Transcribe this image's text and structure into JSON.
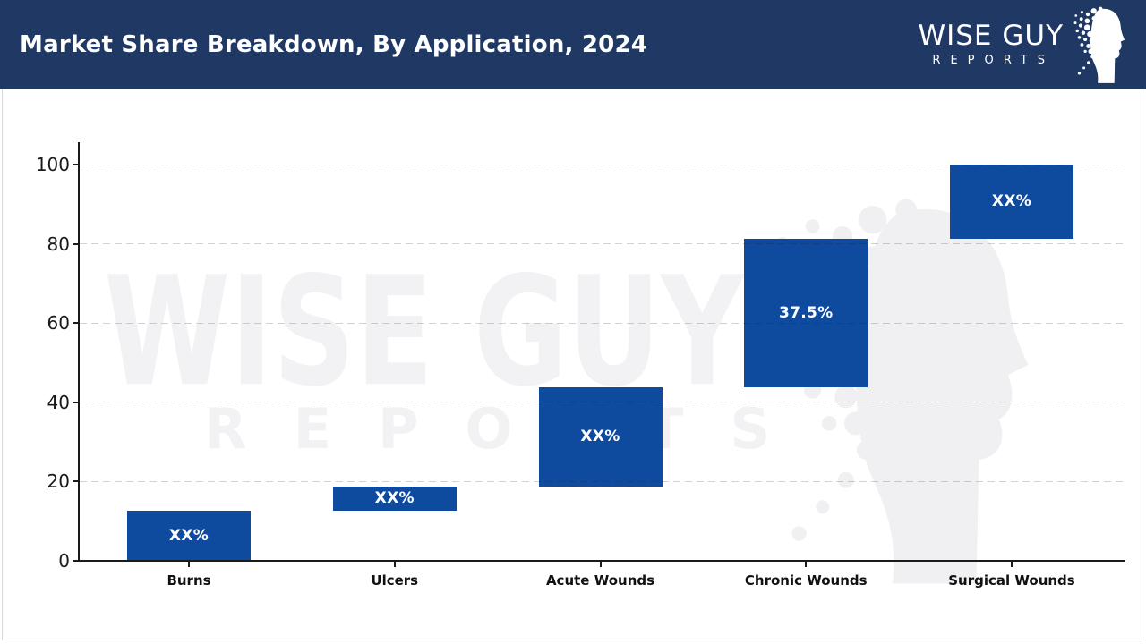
{
  "header": {
    "title": "Market Share Breakdown, By Application, 2024",
    "logo": {
      "line1": "WISE GUY",
      "line2": "REPORTS"
    }
  },
  "watermark": {
    "line1": "WISE GUY",
    "line2": "REPORTS"
  },
  "chart_data": {
    "type": "bar",
    "subtype": "floating-waterfall-segments",
    "title": "Market Share Breakdown, By Application, 2024",
    "categories": [
      "Burns",
      "Ulcers",
      "Acute Wounds",
      "Chronic Wounds",
      "Surgical Wounds"
    ],
    "bars": [
      {
        "category": "Burns",
        "start": 0,
        "end": 12.5,
        "label": "XX%"
      },
      {
        "category": "Ulcers",
        "start": 12.5,
        "end": 18.75,
        "label": "XX%"
      },
      {
        "category": "Acute Wounds",
        "start": 18.75,
        "end": 43.75,
        "label": "XX%"
      },
      {
        "category": "Chronic Wounds",
        "start": 43.75,
        "end": 81.25,
        "label": "37.5%"
      },
      {
        "category": "Surgical Wounds",
        "start": 81.25,
        "end": 100,
        "label": "XX%"
      }
    ],
    "xlabel": "",
    "ylabel": "",
    "yticks": [
      0,
      20,
      40,
      60,
      80,
      100
    ],
    "ylim": [
      0,
      105
    ],
    "grid": "horizontal-dashed",
    "legend": "none",
    "colors": {
      "bar": "#0e4a9d",
      "header_bg": "#1f3864",
      "gridline": "rgba(30,30,30,0.20)",
      "axis": "#1a1a1a",
      "watermark": "#f2f2f4"
    }
  }
}
